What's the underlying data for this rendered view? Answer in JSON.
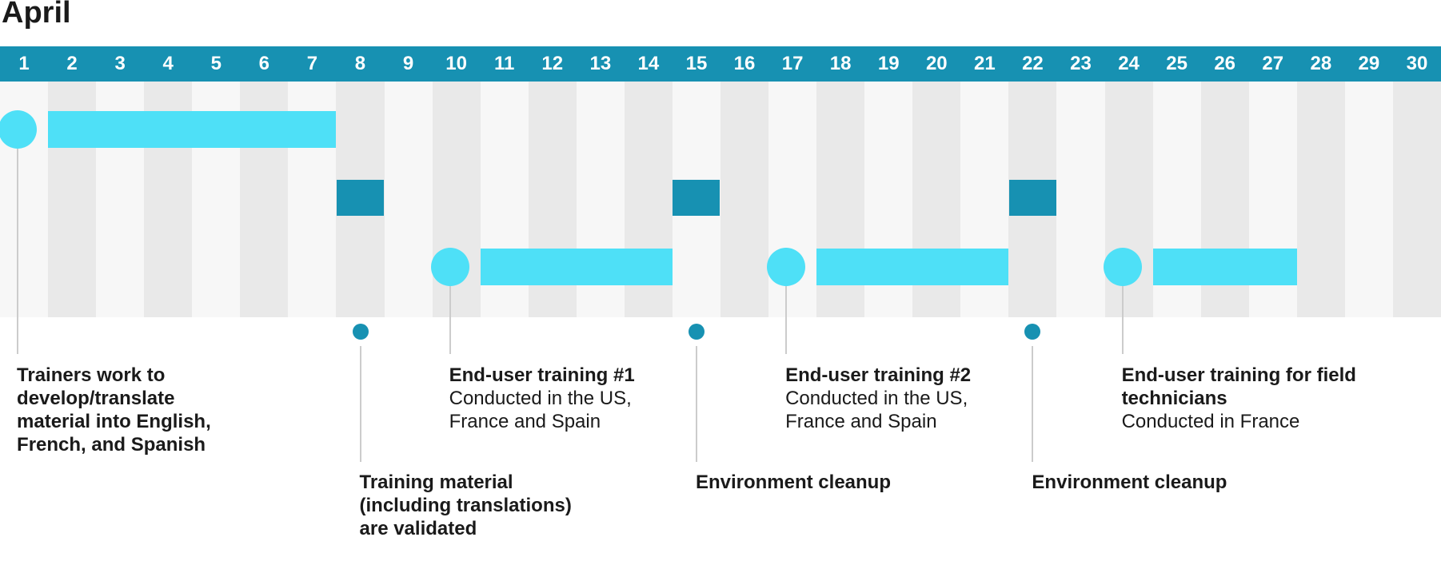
{
  "title": "April",
  "axis": {
    "days": [
      1,
      2,
      3,
      4,
      5,
      6,
      7,
      8,
      9,
      10,
      11,
      12,
      13,
      14,
      15,
      16,
      17,
      18,
      19,
      20,
      21,
      22,
      23,
      24,
      25,
      26,
      27,
      28,
      29,
      30
    ]
  },
  "colors": {
    "teal": "#1791b2",
    "cyan": "#4ee0f7",
    "stripe_dark": "#e9e9e9",
    "stripe_light": "#f7f7f7",
    "connector_gray": "#cccccc",
    "text": "#1a1a1a",
    "day_number_text": "#ffffff"
  },
  "chart_data": {
    "type": "gantt",
    "month": "April",
    "axis_days": {
      "start": 1,
      "end": 30
    },
    "grid": "alternating-day-columns",
    "tasks": [
      {
        "id": "task-develop-material",
        "marker_day": 1,
        "bar_start_day": 2,
        "bar_end_day": 7,
        "row": "top",
        "label_lines": [
          {
            "text": "Trainers work to",
            "bold": true
          },
          {
            "text": "develop/translate",
            "bold": true
          },
          {
            "text": "material into English,",
            "bold": true
          },
          {
            "text": "French, and Spanish",
            "bold": true
          }
        ]
      },
      {
        "id": "task-end-user-training-1",
        "marker_day": 10,
        "bar_start_day": 11,
        "bar_end_day": 14,
        "row": "bottom",
        "label_lines": [
          {
            "text": "End-user training #1",
            "bold": true
          },
          {
            "text": "Conducted in the US,",
            "bold": false
          },
          {
            "text": "France and Spain",
            "bold": false
          }
        ]
      },
      {
        "id": "task-end-user-training-2",
        "marker_day": 17,
        "bar_start_day": 18,
        "bar_end_day": 21,
        "row": "bottom",
        "label_lines": [
          {
            "text": "End-user training #2",
            "bold": true
          },
          {
            "text": "Conducted in the US,",
            "bold": false
          },
          {
            "text": "France and Spain",
            "bold": false
          }
        ]
      },
      {
        "id": "task-end-user-training-field",
        "marker_day": 24,
        "bar_start_day": 25,
        "bar_end_day": 27,
        "row": "bottom",
        "label_lines": [
          {
            "text": "End-user training for field",
            "bold": true
          },
          {
            "text": "technicians",
            "bold": true
          },
          {
            "text": "Conducted in France",
            "bold": false
          }
        ]
      }
    ],
    "milestones": [
      {
        "id": "milestone-material-validated",
        "day": 8,
        "label_lines": [
          {
            "text": "Training material",
            "bold": true
          },
          {
            "text": "(including translations)",
            "bold": true
          },
          {
            "text": "are validated",
            "bold": true
          }
        ]
      },
      {
        "id": "milestone-environment-cleanup-1",
        "day": 15,
        "label_lines": [
          {
            "text": "Environment cleanup",
            "bold": true
          }
        ]
      },
      {
        "id": "milestone-environment-cleanup-2",
        "day": 22,
        "label_lines": [
          {
            "text": "Environment cleanup",
            "bold": true
          }
        ]
      }
    ]
  }
}
